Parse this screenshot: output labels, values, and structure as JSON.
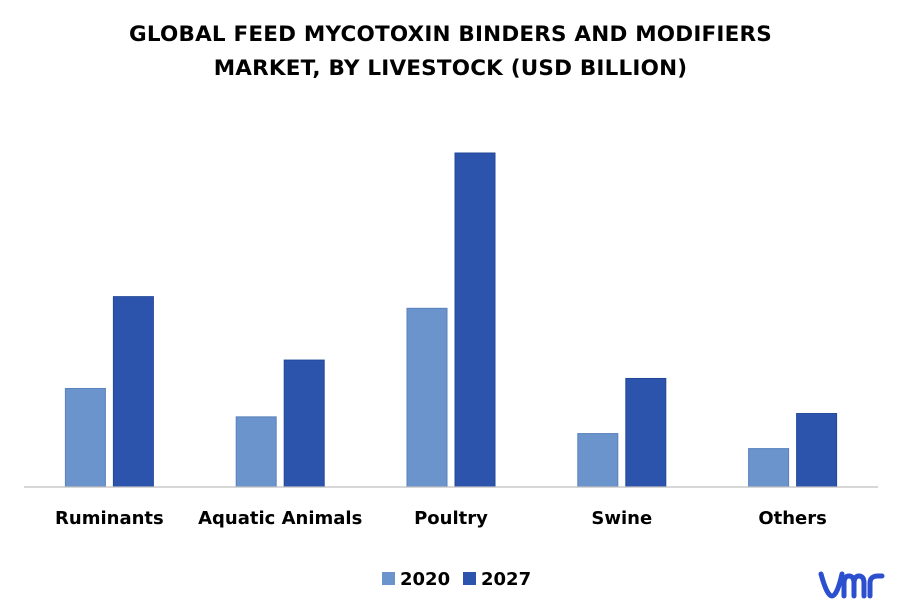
{
  "chart_data": {
    "type": "bar",
    "title_line1": "GLOBAL FEED MYCOTOXIN BINDERS AND MODIFIERS",
    "title_line2": "MARKET, BY LIVESTOCK (USD BILLION)",
    "categories": [
      "Ruminants",
      "Aquatic Animals",
      "Poultry",
      "Swine",
      "Others"
    ],
    "series": [
      {
        "name": "2020",
        "values": [
          0.59,
          0.42,
          1.07,
          0.32,
          0.23
        ],
        "color": "#6b93cc"
      },
      {
        "name": "2027",
        "values": [
          1.14,
          0.76,
          2.0,
          0.65,
          0.44
        ],
        "color": "#2d54ac"
      }
    ],
    "ylim": [
      0,
      2.0
    ],
    "grid": false,
    "legend": "bottom-center",
    "xlabel": "",
    "ylabel": ""
  },
  "logo": {
    "text": "vmr",
    "color": "#2c4fd0"
  }
}
